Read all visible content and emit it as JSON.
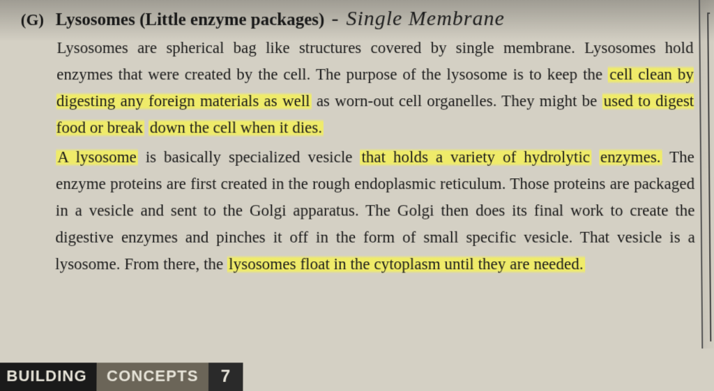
{
  "section": {
    "label": "(G)",
    "heading": "Lysosomes (Little enzyme packages)",
    "handwritten_prefix": "-",
    "handwritten": "Single Membrane"
  },
  "para1": {
    "t1": "Lysosomes are spherical bag like structures covered by single membrane. Lysosomes hold enzymes that were created by the cell. The purpose of the lysosome is to keep the ",
    "h1": "cell clean by digesting any foreign materials as well",
    "t2": " as worn-out cell organelles. They might be ",
    "h2": "used to digest food or break",
    "t3": " ",
    "h3": "down the cell when it dies."
  },
  "para2": {
    "t1": "A lysosome",
    "t2": " is basically specialized vesicle ",
    "h1": "that holds a variety of hydrolytic",
    "t3": " ",
    "h2": "enzymes.",
    "t4": " The enzyme proteins are first created in the rough endoplasmic reticulum. Those proteins are packaged in a vesicle and sent to the Golgi apparatus. The Golgi then does its final work to create the digestive enzymes and pinches it off in the form of small specific vesicle. That vesicle is a lysosome. From there, the ",
    "h3": "lysosomes float in the cytoplasm until they are needed."
  },
  "footer": {
    "word1": "BUILDING",
    "word2": "CONCEPTS",
    "num": "7"
  },
  "colors": {
    "highlight": "#f4f05a",
    "page_bg": "#d4d0c4",
    "text": "#1a1a1a",
    "badge_dark": "#1a1a1a",
    "badge_mid": "#6b6558"
  }
}
